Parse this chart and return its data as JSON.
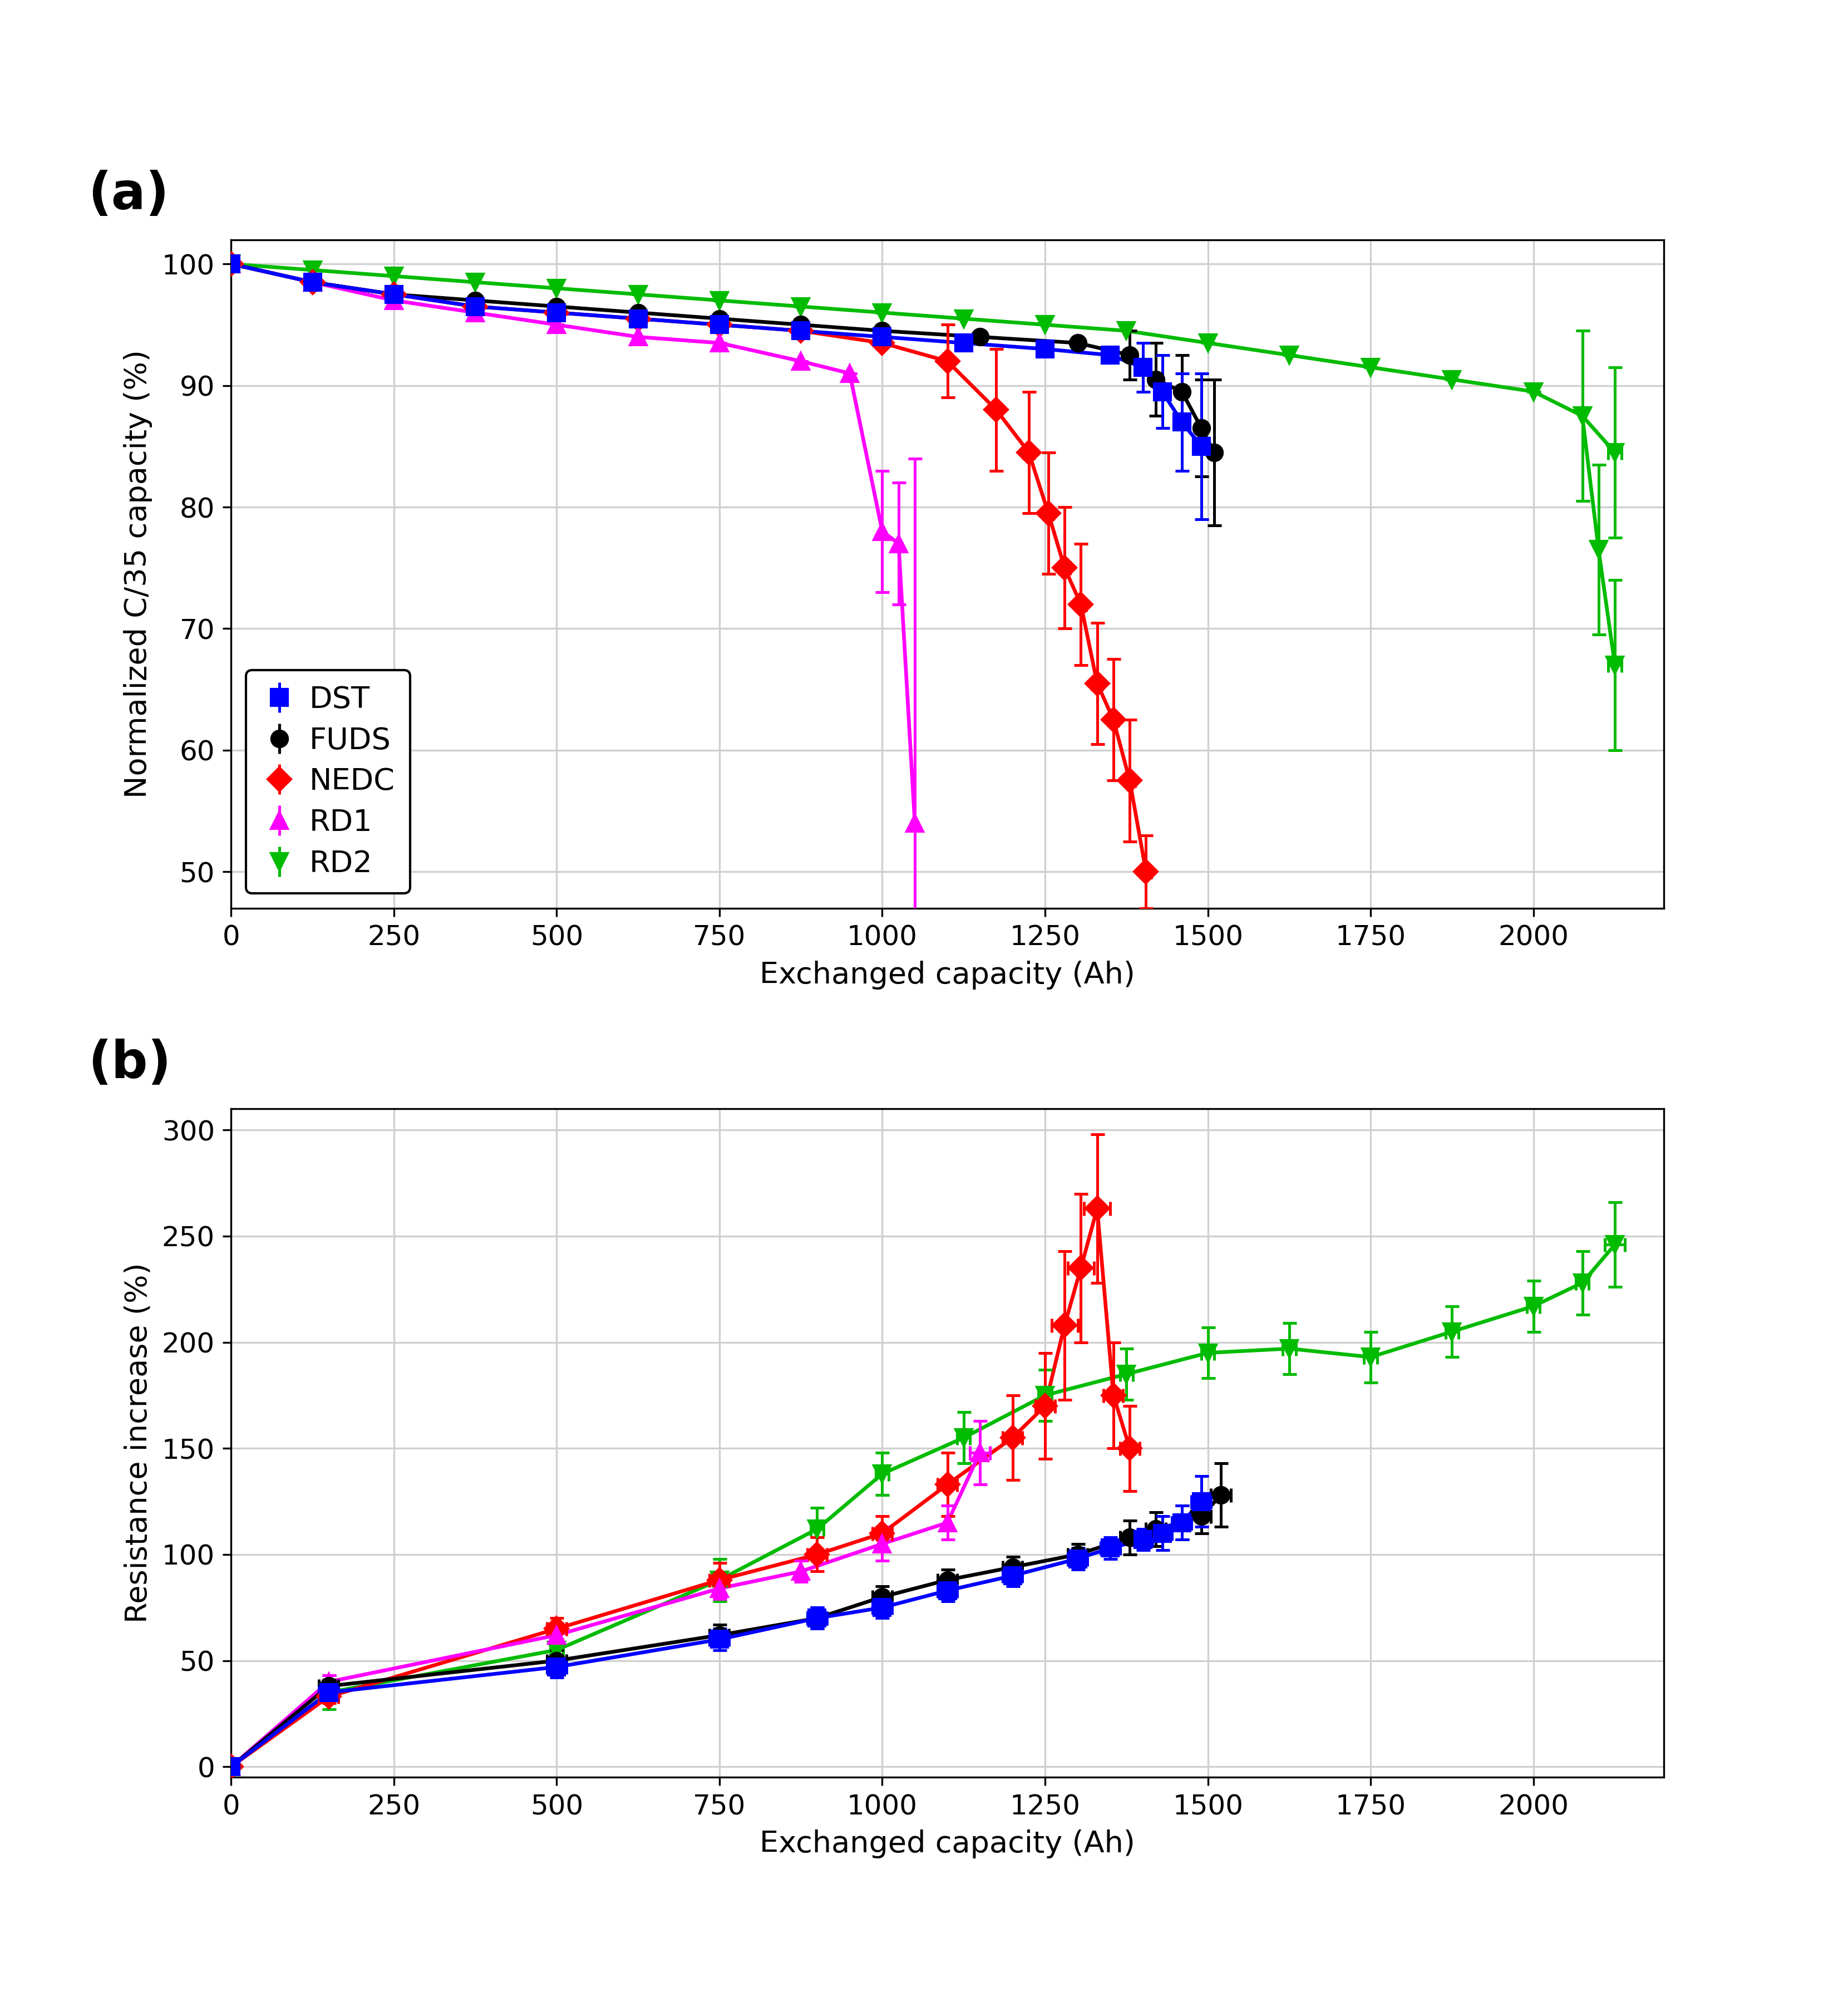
{
  "panel_a": {
    "title": "(a)",
    "xlabel": "Exchanged capacity (Ah)",
    "ylabel": "Normalized C/35 capacity (%)",
    "xlim": [
      0,
      2200
    ],
    "ylim": [
      47,
      102
    ],
    "yticks": [
      50,
      60,
      70,
      80,
      90,
      100
    ],
    "xticks": [
      0,
      250,
      500,
      750,
      1000,
      1250,
      1500,
      1750,
      2000
    ],
    "series": {
      "DST": {
        "color": "#0000FF",
        "marker": "s",
        "x": [
          0,
          125,
          250,
          375,
          500,
          625,
          750,
          875,
          1000,
          1125,
          1250,
          1350,
          1400,
          1430,
          1460,
          1490
        ],
        "y": [
          100,
          98.5,
          97.5,
          96.5,
          96.0,
          95.5,
          95.0,
          94.5,
          94.0,
          93.5,
          93.0,
          92.5,
          91.5,
          89.5,
          87.0,
          85.0
        ],
        "xerr": [
          0,
          0,
          0,
          0,
          0,
          0,
          0,
          0,
          0,
          0,
          0,
          0,
          0,
          5,
          5,
          5
        ],
        "yerr": [
          0,
          0,
          0,
          0,
          0,
          0,
          0,
          0,
          0,
          0,
          0,
          0,
          2,
          3,
          4,
          6
        ]
      },
      "FUDS": {
        "color": "#000000",
        "marker": "o",
        "x": [
          0,
          125,
          250,
          375,
          500,
          625,
          750,
          875,
          1000,
          1150,
          1300,
          1380,
          1420,
          1460,
          1490,
          1510
        ],
        "y": [
          100,
          98.5,
          97.5,
          97.0,
          96.5,
          96.0,
          95.5,
          95.0,
          94.5,
          94.0,
          93.5,
          92.5,
          90.5,
          89.5,
          86.5,
          84.5
        ],
        "xerr": [
          0,
          0,
          0,
          0,
          0,
          0,
          0,
          0,
          0,
          0,
          0,
          0,
          5,
          5,
          5,
          5
        ],
        "yerr": [
          0,
          0,
          0,
          0,
          0,
          0,
          0,
          0,
          0,
          0,
          0,
          2,
          3,
          3,
          4,
          6
        ]
      },
      "NEDC": {
        "color": "#FF0000",
        "marker": "D",
        "x": [
          0,
          125,
          250,
          375,
          500,
          625,
          750,
          875,
          1000,
          1100,
          1175,
          1225,
          1255,
          1280,
          1305,
          1330,
          1355,
          1380,
          1405
        ],
        "y": [
          100,
          98.5,
          97.5,
          96.5,
          96.0,
          95.5,
          95.0,
          94.5,
          93.5,
          92.0,
          88.0,
          84.5,
          79.5,
          75.0,
          72.0,
          65.5,
          62.5,
          57.5,
          50.0
        ],
        "xerr": [
          0,
          0,
          0,
          0,
          0,
          0,
          0,
          0,
          0,
          0,
          8,
          8,
          8,
          8,
          8,
          8,
          8,
          8,
          8
        ],
        "yerr": [
          0,
          0,
          0,
          0,
          0,
          0,
          0,
          0,
          0,
          3,
          5,
          5,
          5,
          5,
          5,
          5,
          5,
          5,
          3
        ]
      },
      "RD1": {
        "color": "#FF00FF",
        "marker": "^",
        "x": [
          0,
          125,
          250,
          375,
          500,
          625,
          750,
          875,
          950,
          1000,
          1025,
          1050
        ],
        "y": [
          100,
          98.5,
          97.0,
          96.0,
          95.0,
          94.0,
          93.5,
          92.0,
          91.0,
          78.0,
          77.0,
          54.0
        ],
        "xerr": [
          0,
          0,
          0,
          0,
          0,
          0,
          0,
          0,
          0,
          0,
          0,
          0
        ],
        "yerr": [
          0,
          0,
          0,
          0,
          0,
          0,
          0,
          0,
          0,
          5,
          5,
          30
        ]
      },
      "RD2": {
        "color": "#00BB00",
        "marker": "v",
        "x": [
          0,
          125,
          250,
          375,
          500,
          625,
          750,
          875,
          1000,
          1125,
          1250,
          1375,
          1500,
          1625,
          1750,
          1875,
          2000,
          2075,
          2125
        ],
        "y": [
          100,
          99.5,
          99.0,
          98.5,
          98.0,
          97.5,
          97.0,
          96.5,
          96.0,
          95.5,
          95.0,
          94.5,
          93.5,
          92.5,
          91.5,
          90.5,
          89.5,
          87.5,
          84.5
        ],
        "xerr": [
          0,
          0,
          0,
          0,
          0,
          0,
          0,
          0,
          0,
          0,
          0,
          0,
          0,
          0,
          0,
          0,
          0,
          0,
          10
        ],
        "yerr": [
          0,
          0,
          0,
          0,
          0,
          0,
          0,
          0,
          0,
          0,
          0,
          0,
          0,
          0,
          0,
          0,
          0,
          7,
          7
        ]
      }
    },
    "rd2_extra": {
      "color": "#00BB00",
      "marker": "v",
      "x": [
        2075,
        2100,
        2125
      ],
      "y": [
        87.5,
        76.5,
        67.0
      ],
      "xerr": [
        0,
        0,
        10
      ],
      "yerr": [
        7,
        7,
        7
      ]
    }
  },
  "panel_b": {
    "title": "(b)",
    "xlabel": "Exchanged capacity (Ah)",
    "ylabel": "Resistance increase (%)",
    "xlim": [
      0,
      2200
    ],
    "ylim": [
      -5,
      310
    ],
    "yticks": [
      0,
      50,
      100,
      150,
      200,
      250,
      300
    ],
    "xticks": [
      0,
      250,
      500,
      750,
      1000,
      1250,
      1500,
      1750,
      2000
    ],
    "series": {
      "DST": {
        "color": "#0000FF",
        "marker": "s",
        "x": [
          0,
          150,
          500,
          750,
          900,
          1000,
          1100,
          1200,
          1300,
          1350,
          1400,
          1430,
          1460,
          1490
        ],
        "y": [
          0,
          35,
          47,
          60,
          70,
          75,
          83,
          90,
          98,
          103,
          107,
          110,
          115,
          125
        ],
        "xerr": [
          0,
          15,
          15,
          15,
          15,
          15,
          15,
          15,
          15,
          15,
          15,
          15,
          15,
          15
        ],
        "yerr": [
          0,
          3,
          5,
          5,
          5,
          5,
          5,
          5,
          5,
          5,
          5,
          8,
          8,
          12
        ]
      },
      "FUDS": {
        "color": "#000000",
        "marker": "o",
        "x": [
          0,
          150,
          500,
          750,
          900,
          1000,
          1100,
          1200,
          1300,
          1380,
          1420,
          1460,
          1490,
          1520
        ],
        "y": [
          0,
          38,
          50,
          62,
          70,
          80,
          88,
          94,
          100,
          108,
          112,
          115,
          118,
          128
        ],
        "xerr": [
          0,
          15,
          15,
          15,
          15,
          15,
          15,
          15,
          15,
          15,
          15,
          15,
          15,
          15
        ],
        "yerr": [
          0,
          3,
          5,
          5,
          5,
          5,
          5,
          5,
          5,
          8,
          8,
          8,
          8,
          15
        ]
      },
      "NEDC": {
        "color": "#FF0000",
        "marker": "D",
        "x": [
          0,
          150,
          500,
          750,
          900,
          1000,
          1100,
          1200,
          1250,
          1280,
          1305,
          1330,
          1355,
          1380
        ],
        "y": [
          0,
          33,
          65,
          88,
          100,
          110,
          133,
          155,
          170,
          208,
          235,
          263,
          175,
          150
        ],
        "xerr": [
          0,
          15,
          15,
          15,
          15,
          15,
          15,
          15,
          15,
          20,
          20,
          20,
          15,
          15
        ],
        "yerr": [
          0,
          3,
          5,
          8,
          8,
          8,
          15,
          20,
          25,
          35,
          35,
          35,
          25,
          20
        ]
      },
      "RD1": {
        "color": "#FF00FF",
        "marker": "^",
        "x": [
          0,
          150,
          500,
          750,
          875,
          1000,
          1100,
          1150
        ],
        "y": [
          0,
          40,
          62,
          84,
          92,
          105,
          115,
          148
        ],
        "xerr": [
          0,
          0,
          0,
          0,
          0,
          0,
          0,
          15
        ],
        "yerr": [
          0,
          3,
          5,
          5,
          5,
          8,
          8,
          15
        ]
      },
      "RD2": {
        "color": "#00BB00",
        "marker": "v",
        "x": [
          0,
          150,
          500,
          750,
          900,
          1000,
          1125,
          1250,
          1375,
          1500,
          1625,
          1750,
          1875,
          2000,
          2075,
          2125
        ],
        "y": [
          0,
          35,
          55,
          88,
          112,
          138,
          155,
          175,
          185,
          195,
          197,
          193,
          205,
          217,
          228,
          246
        ],
        "xerr": [
          0,
          10,
          10,
          10,
          10,
          10,
          10,
          10,
          10,
          10,
          10,
          10,
          10,
          10,
          10,
          15
        ],
        "yerr": [
          0,
          8,
          12,
          10,
          10,
          10,
          12,
          12,
          12,
          12,
          12,
          12,
          12,
          12,
          15,
          20
        ]
      }
    }
  }
}
